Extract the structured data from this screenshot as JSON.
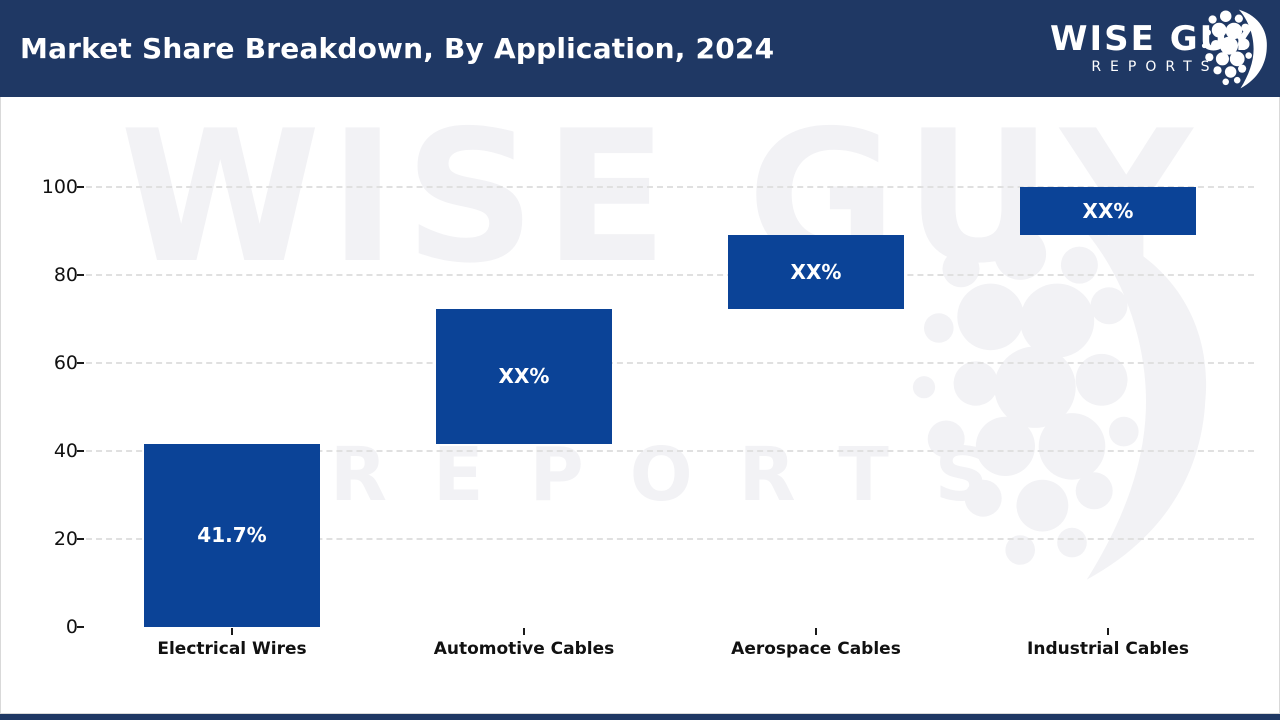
{
  "header": {
    "title": "Market Share Breakdown, By Application, 2024",
    "bg_color": "#1f3864",
    "logo": {
      "line1": "WISE GUY",
      "line2": "REPORTS"
    }
  },
  "watermark": {
    "line1": "WISE GUY",
    "line2": "REPORTS"
  },
  "chart_data": {
    "type": "bar",
    "subtype": "waterfall",
    "title": "Market Share Breakdown, By Application, 2024",
    "categories": [
      "Electrical Wires",
      "Automotive Cables",
      "Aerospace Cables",
      "Industrial Cables"
    ],
    "segments": [
      {
        "category": "Electrical Wires",
        "start": 0,
        "end": 41.7,
        "label": "41.7%"
      },
      {
        "category": "Automotive Cables",
        "start": 41.7,
        "end": 72.3,
        "label": "XX%"
      },
      {
        "category": "Aerospace Cables",
        "start": 72.3,
        "end": 89.1,
        "label": "XX%"
      },
      {
        "category": "Industrial Cables",
        "start": 89.1,
        "end": 100,
        "label": "XX%"
      }
    ],
    "xlabel": "",
    "ylabel": "",
    "yticks": [
      0,
      20,
      40,
      60,
      80,
      100
    ],
    "ylim": [
      0,
      105.7
    ],
    "grid": "horizontal-dashed",
    "legend_position": "none",
    "bar_color": "#0b4397",
    "bar_label_color": "#ffffff",
    "gridline_color": "#e0e0e0"
  }
}
